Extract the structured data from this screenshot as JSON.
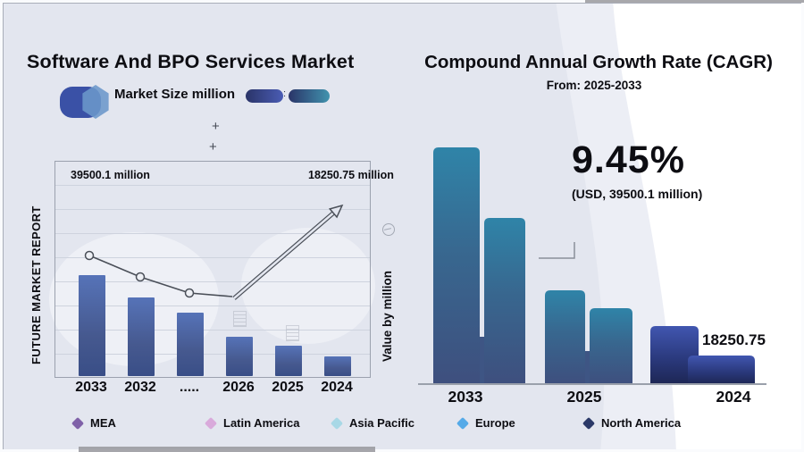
{
  "header_left": {
    "title": "Software And BPO Services Market",
    "legend_label": "Market Size million",
    "ratio_separator": ":"
  },
  "header_right": {
    "title": "Compound Annual Growth Rate (CAGR)",
    "subtitle": "From: 2025-2033",
    "cagr_value": "9.45%",
    "cagr_note": "(USD, 39500.1 million)"
  },
  "left_chart": {
    "watermark": "FUTURE MARKET REPORT",
    "top_left_value": "39500.1 million",
    "top_right_value": "18250.75 million",
    "plus_mark": "+"
  },
  "right_chart": {
    "value_axis_label": "Value by million",
    "annotation_value": "18250.75"
  },
  "legend": [
    {
      "label": "MEA",
      "color": "#7f61a8"
    },
    {
      "label": "Latin America",
      "color": "#d9aadb"
    },
    {
      "label": "Asia Pacific",
      "color": "#a8d8e6"
    },
    {
      "label": "Europe",
      "color": "#55aae8"
    },
    {
      "label": "North America",
      "color": "#2b3968"
    }
  ],
  "colors": {
    "left_bar_top": "#5673b8",
    "left_bar_bottom": "#394e87",
    "right_bar_teal_top": "#2f84a8",
    "right_bar_teal_bottom": "#3e4f7e",
    "right_bar_navy_top": "#4156b0",
    "right_bar_navy_bottom": "#1d2654",
    "background": "#e3e6ef",
    "line_stroke": "#4a4f58"
  },
  "chart_data": [
    {
      "type": "bar",
      "title": "Software And BPO Services Market",
      "ylabel": "Market Size million",
      "categories": [
        "2033",
        "2032",
        ".....",
        "2026",
        "2025",
        "2024"
      ],
      "series": [
        {
          "name": "Market Size (relative bar height, px)",
          "values": [
            113,
            88,
            71,
            44,
            34,
            22
          ]
        }
      ],
      "labeled_values": {
        "2033": "39500.1 million",
        "2024": "18250.75 million"
      },
      "grid": true,
      "overlay_line": {
        "comment": "declining marker line over first bars, then up-trend outline arrow",
        "points": [
          [
            39,
            106
          ],
          [
            96,
            130
          ],
          [
            151,
            148
          ],
          [
            199,
            152
          ]
        ],
        "arrow_end": [
          322,
          50
        ]
      }
    },
    {
      "type": "bar",
      "title": "Compound Annual Growth Rate (CAGR)",
      "subtitle": "From: 2025-2033",
      "cagr_percent": 9.45,
      "base_value_usd_million": 39500.1,
      "end_value_usd_million": 18250.75,
      "categories": [
        "2033",
        "2025",
        "2024"
      ],
      "series": [
        {
          "name": "bar A height (px)",
          "values": [
            265,
            105,
            65
          ]
        },
        {
          "name": "bar B height (px)",
          "values": [
            186,
            85,
            32
          ]
        }
      ],
      "annotation": "18250.75",
      "ylabel": "Value by million",
      "legend_position": "bottom"
    }
  ]
}
